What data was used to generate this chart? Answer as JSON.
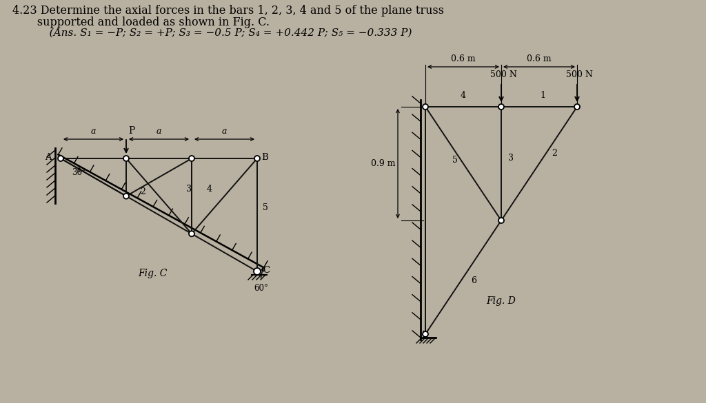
{
  "bg_color": "#b8b0a0",
  "text_color": "#000000",
  "title_line1": "4.23 Determine the axial forces in the bars 1, 2, 3, 4 and 5 of the plane truss",
  "title_line2": "       supported and loaded as shown in Fig. C.",
  "answer_line": "           (Ans. S₁ = −P; S₂ = +P; S₃ = −0.5 P; S₄ = +0.442 P; S₅ = −0.333 P)",
  "fig_c_label": "Fig. C",
  "fig_d_label": "Fig. D",
  "line_color": "#111111",
  "lw": 1.4
}
